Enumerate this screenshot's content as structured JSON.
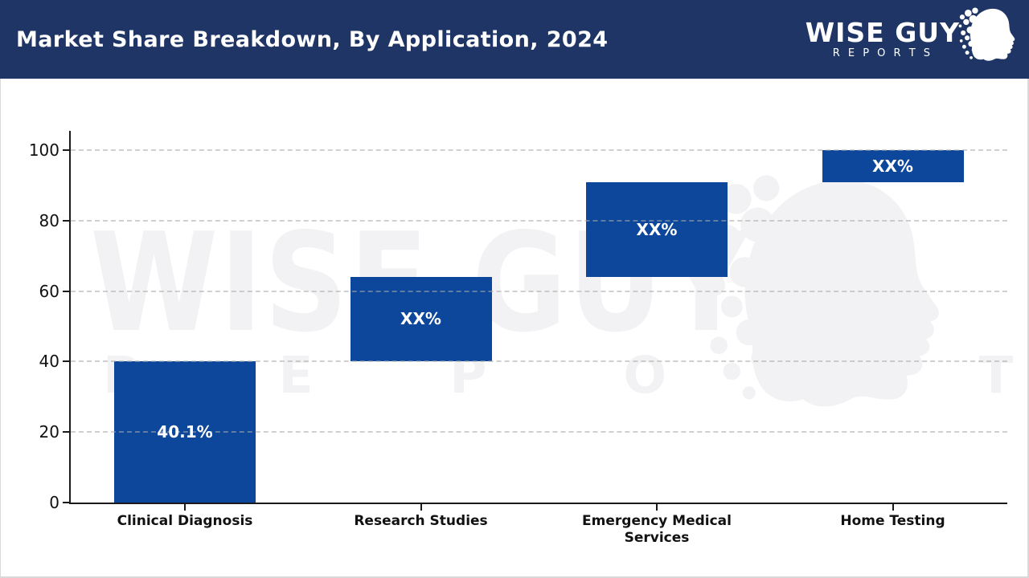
{
  "header": {
    "title": "Market Share Breakdown, By Application, 2024",
    "logo": {
      "wordmark": "WISE GUY",
      "subtitle": "R E P O R T S"
    }
  },
  "watermark": {
    "line1": "WISE GUY",
    "line2": "R E P O R T S"
  },
  "chart_data": {
    "type": "bar",
    "subtype": "floating-segment-waterfall",
    "title": "Market Share Breakdown, By Application, 2024",
    "categories": [
      "Clinical Diagnosis",
      "Research Studies",
      "Emergency Medical Services",
      "Home Testing"
    ],
    "segments": [
      {
        "category": "Clinical Diagnosis",
        "start": 0,
        "end": 40.1,
        "label": "40.1%"
      },
      {
        "category": "Research Studies",
        "start": 40.1,
        "end": 64,
        "label": "XX%"
      },
      {
        "category": "Emergency Medical Services",
        "start": 64,
        "end": 91,
        "label": "XX%"
      },
      {
        "category": "Home Testing",
        "start": 91,
        "end": 100,
        "label": "XX%"
      }
    ],
    "xlabel": "",
    "ylabel": "",
    "ylim": [
      0,
      100
    ],
    "yticks": [
      0,
      20,
      40,
      60,
      80,
      100
    ],
    "grid": "horizontal-dashed",
    "legend": "none",
    "bar_color": "#0c479c"
  },
  "colors": {
    "header_bg": "#1e3565",
    "bar": "#0c479c",
    "axis": "#1a1a1a",
    "gridline": "#dddddd",
    "watermark": "#f2f2f4",
    "page_bg": "#ffffff",
    "text": "#111111",
    "bar_label_text": "#ffffff"
  }
}
